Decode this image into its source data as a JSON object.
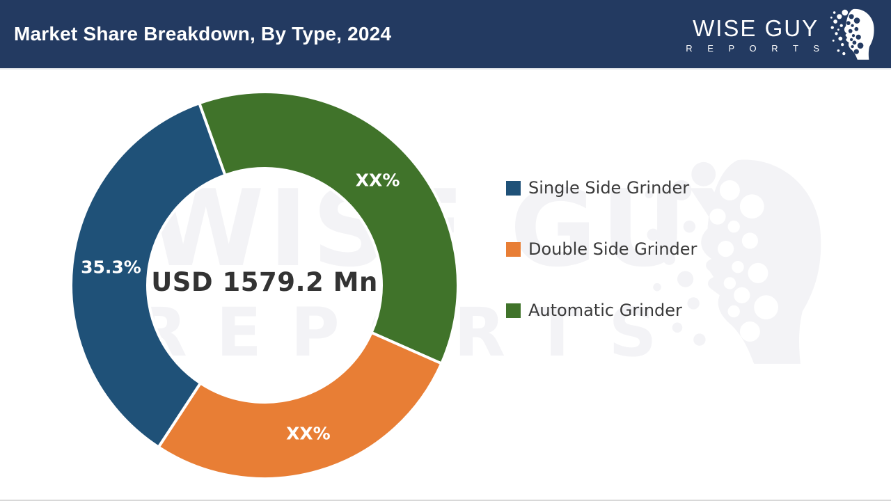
{
  "header": {
    "title": "Market Share Breakdown, By Type, 2024",
    "logo": {
      "line1": "WISE GUY",
      "line2": "R E P O R T S"
    }
  },
  "watermark": {
    "line1": "WISE GUY",
    "line2": "R E P O R T S"
  },
  "chart_data": {
    "type": "pie",
    "subtype": "donut",
    "title": "Market Share Breakdown, By Type, 2024",
    "center_label": "USD 1579.2 Mn",
    "start_angle_deg": -19.7,
    "legend_position": "right",
    "segments": [
      {
        "name": "Automatic Grinder",
        "displayed_label": "XX%",
        "share_pct_est": 37.1,
        "color": "#40732A"
      },
      {
        "name": "Double Side Grinder",
        "displayed_label": "XX%",
        "share_pct_est": 27.6,
        "color": "#E87E35"
      },
      {
        "name": "Single Side Grinder",
        "displayed_label": "35.3%",
        "share_pct_est": 35.3,
        "color": "#1F5178"
      }
    ]
  },
  "legend": {
    "items": [
      {
        "label": "Single Side Grinder",
        "color": "#1F5178"
      },
      {
        "label": "Double Side Grinder",
        "color": "#E87E35"
      },
      {
        "label": "Automatic Grinder",
        "color": "#40732A"
      }
    ]
  }
}
